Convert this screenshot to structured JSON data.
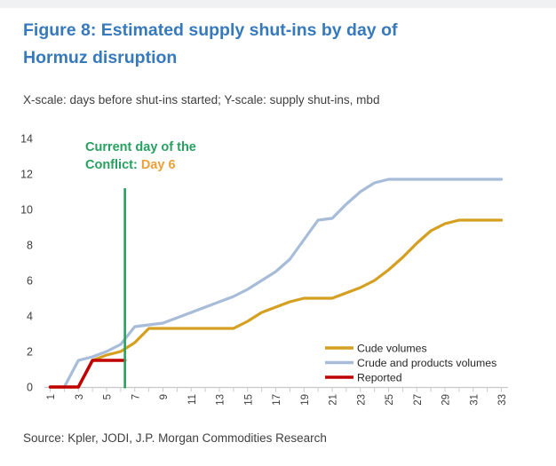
{
  "header": {
    "title_line1": "Figure 8: Estimated supply shut-ins by day of",
    "title_line2": "Hormuz disruption",
    "subtitle": "X-scale: days before shut-ins started; Y-scale: supply shut-ins, mbd"
  },
  "annotation": {
    "line1": "Current day of the",
    "line2_prefix": "Conflict: ",
    "line2_highlight": "Day 6",
    "text_color": "#27A060",
    "highlight_color": "#E9A23B",
    "vline_color": "#28A15D",
    "vline_day": 6.3
  },
  "chart_data": {
    "type": "line",
    "title": "Figure 8: Estimated supply shut-ins by day of Hormuz disruption",
    "xlabel": "days before shut-ins started",
    "ylabel": "supply shut-ins, mbd",
    "x_range": [
      1,
      33
    ],
    "ylim": [
      0,
      14
    ],
    "grid": false,
    "legend_position": "inside-bottom-right",
    "y_ticks": [
      0,
      2,
      4,
      6,
      8,
      10,
      12,
      14
    ],
    "x_tick_labels": [
      1,
      3,
      5,
      7,
      9,
      11,
      13,
      15,
      17,
      19,
      21,
      23,
      25,
      27,
      29,
      31,
      33
    ],
    "axis_color": "#C6C9CC",
    "tick_label_color": "#3D3D3D",
    "legend_text_color": "#262626",
    "series": [
      {
        "id": "crude-volumes",
        "name": "Cude volumes",
        "color": "#D5A021",
        "width": 3.2,
        "days": [
          1,
          2,
          3,
          4,
          5,
          6,
          7,
          8,
          9,
          10,
          11,
          12,
          13,
          14,
          15,
          16,
          17,
          18,
          19,
          20,
          21,
          22,
          23,
          24,
          25,
          26,
          27,
          28,
          29,
          30,
          31,
          32,
          33
        ],
        "values": [
          0,
          0,
          0,
          1.5,
          1.8,
          2.0,
          2.5,
          3.3,
          3.3,
          3.3,
          3.3,
          3.3,
          3.3,
          3.3,
          3.7,
          4.2,
          4.5,
          4.8,
          5.0,
          5.0,
          5.0,
          5.3,
          5.6,
          6.0,
          6.6,
          7.3,
          8.1,
          8.8,
          9.2,
          9.4,
          9.4,
          9.4,
          9.4
        ]
      },
      {
        "id": "crude-and-products-volumes",
        "name": "Crude and products volumes",
        "color": "#A7BCD9",
        "width": 3.2,
        "days": [
          1,
          2,
          3,
          4,
          5,
          6,
          7,
          8,
          9,
          10,
          11,
          12,
          13,
          14,
          15,
          16,
          17,
          18,
          19,
          20,
          21,
          22,
          23,
          24,
          25,
          26,
          27,
          28,
          29,
          30,
          31,
          32,
          33
        ],
        "values": [
          0,
          0,
          1.5,
          1.7,
          2.0,
          2.4,
          3.4,
          3.5,
          3.6,
          3.9,
          4.2,
          4.5,
          4.8,
          5.1,
          5.5,
          6.0,
          6.5,
          7.2,
          8.3,
          9.4,
          9.5,
          10.3,
          11.0,
          11.5,
          11.7,
          11.7,
          11.7,
          11.7,
          11.7,
          11.7,
          11.7,
          11.7,
          11.7
        ]
      },
      {
        "id": "reported",
        "name": "Reported",
        "color": "#C00000",
        "width": 3.5,
        "days": [
          1,
          2,
          3,
          4,
          5,
          6.3
        ],
        "values": [
          0,
          0,
          0,
          1.5,
          1.5,
          1.5
        ]
      }
    ]
  },
  "footer": {
    "source": "Source: Kpler, JODI, J.P. Morgan Commodities Research"
  }
}
